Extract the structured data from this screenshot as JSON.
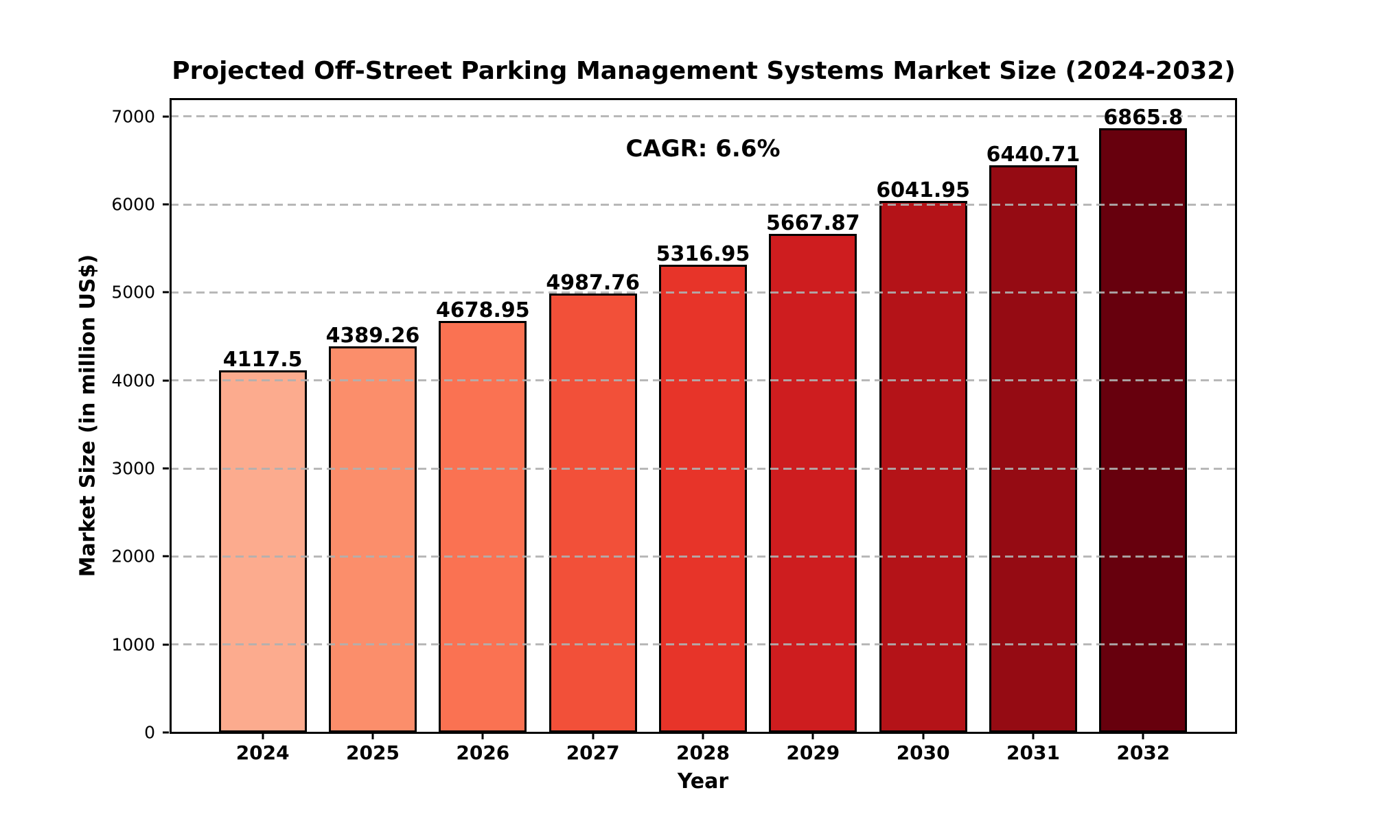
{
  "figure": {
    "background_color": "#FFFFFF",
    "text_color": "#000000"
  },
  "chart_data": {
    "type": "bar",
    "title": "Projected Off-Street Parking Management Systems Market Size (2024-2032)",
    "xlabel": "Year",
    "ylabel": "Market Size (in million US$)",
    "annotation": "CAGR: 6.6%",
    "categories": [
      "2024",
      "2025",
      "2026",
      "2027",
      "2028",
      "2029",
      "2030",
      "2031",
      "2032"
    ],
    "values": [
      4117.5,
      4389.26,
      4678.95,
      4987.76,
      5316.95,
      5667.87,
      6041.95,
      6440.71,
      6865.8
    ],
    "bar_labels": [
      "4117.5",
      "4389.26",
      "4678.95",
      "4987.76",
      "5316.95",
      "5667.87",
      "6041.95",
      "6440.71",
      "6865.8"
    ],
    "bar_colors": [
      "#FCAB8E",
      "#FB8E6B",
      "#FA7252",
      "#F25039",
      "#E73429",
      "#CE1D1F",
      "#B41318",
      "#950B13",
      "#67000D"
    ],
    "bar_edge_color": "#000000",
    "ylim": [
      0,
      7200
    ],
    "yticks": [
      0,
      1000,
      2000,
      3000,
      4000,
      5000,
      6000,
      7000
    ],
    "grid": {
      "axis": "y",
      "style": "dashed",
      "color": "#B0B0B0",
      "behind_bars": false
    },
    "legend": "none"
  }
}
